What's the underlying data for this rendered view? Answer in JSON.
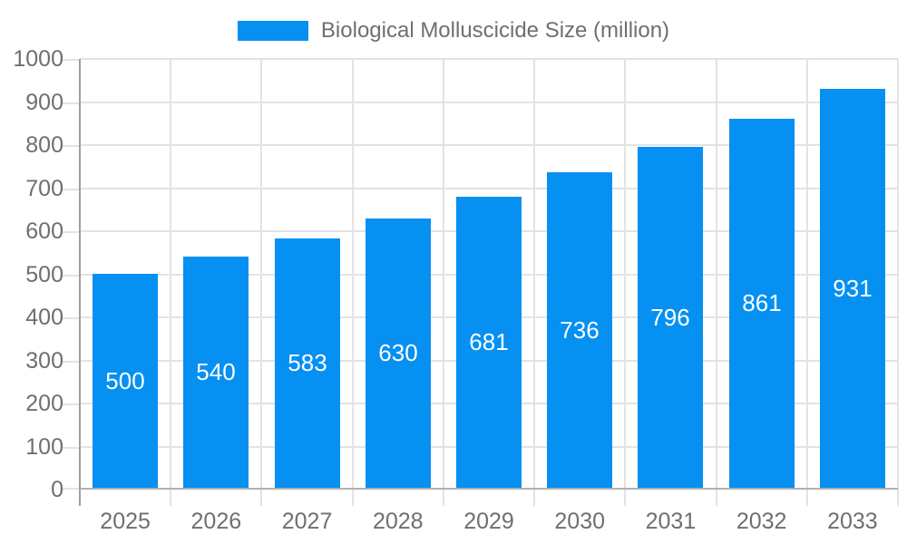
{
  "legend": {
    "label": "Biological Molluscicide Size (million)",
    "swatch_color": "#0590f2"
  },
  "chart_data": {
    "type": "bar",
    "title": "",
    "categories": [
      "2025",
      "2026",
      "2027",
      "2028",
      "2029",
      "2030",
      "2031",
      "2032",
      "2033"
    ],
    "values": [
      500,
      540,
      583,
      630,
      681,
      736,
      796,
      861,
      931
    ],
    "series_name": "Biological Molluscicide Size (million)",
    "xlabel": "",
    "ylabel": "",
    "ylim": [
      0,
      1000
    ],
    "y_ticks": [
      "0",
      "100",
      "200",
      "300",
      "400",
      "500",
      "600",
      "700",
      "800",
      "900",
      "1000"
    ],
    "grid": true,
    "legend_position": "top-center",
    "bar_color": "#0590f2",
    "value_label_color": "#ffffff",
    "axis_text_color": "#6f6f6f",
    "gridline_color": "#e3e3e3"
  }
}
